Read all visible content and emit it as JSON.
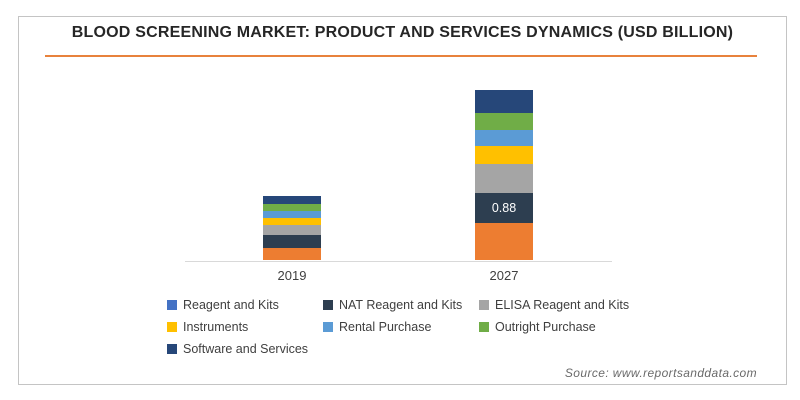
{
  "title": "BLOOD SCREENING MARKET: PRODUCT AND SERVICES DYNAMICS (USD BILLION)",
  "source_note": "Source: www.reportsanddata.com",
  "styles": {
    "title_underline_color": "#e8823c",
    "axis_line_color": "#d9d9d9",
    "data_label_color": "#ffffff"
  },
  "chart_data": {
    "type": "bar",
    "stacked": true,
    "orientation": "vertical",
    "title": "BLOOD SCREENING MARKET: PRODUCT AND SERVICES DYNAMICS (USD BILLION)",
    "categories": [
      "2019",
      "2027"
    ],
    "series": [
      {
        "name": "Reagent and Kits",
        "color": "#ed7d31",
        "legend_color": "#4472c4",
        "values": [
          0.35,
          1.09
        ]
      },
      {
        "name": "NAT Reagent and Kits",
        "color": "#2d3e50",
        "legend_color": "#2d3e50",
        "values": [
          0.38,
          0.88
        ],
        "data_label": {
          "category": "2027",
          "text": "0.88"
        }
      },
      {
        "name": "ELISA Reagent and Kits",
        "color": "#a5a5a5",
        "legend_color": "#a5a5a5",
        "values": [
          0.29,
          0.85
        ]
      },
      {
        "name": "Instruments",
        "color": "#ffc000",
        "legend_color": "#ffc000",
        "values": [
          0.21,
          0.53
        ]
      },
      {
        "name": "Rental Purchase",
        "color": "#5b9bd5",
        "legend_color": "#5b9bd5",
        "values": [
          0.2,
          0.47
        ]
      },
      {
        "name": "Outright Purchase",
        "color": "#70ad47",
        "legend_color": "#70ad47",
        "values": [
          0.21,
          0.5
        ]
      },
      {
        "name": "Software and Services",
        "color": "#264779",
        "legend_color": "#264779",
        "values": [
          0.24,
          0.65
        ]
      }
    ],
    "totals": [
      1.88,
      4.97
    ],
    "ylim": [
      0,
      5
    ],
    "grid": false,
    "legend_position": "bottom",
    "xlabel": "",
    "ylabel": ""
  }
}
